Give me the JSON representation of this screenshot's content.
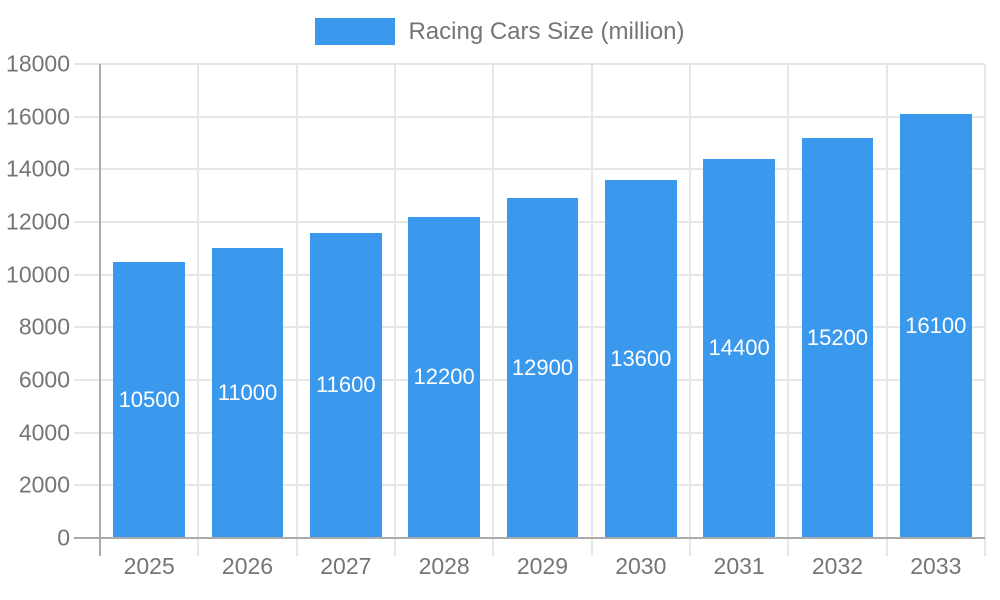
{
  "legend": {
    "label": "Racing Cars Size (million)"
  },
  "chart_data": {
    "type": "bar",
    "title": "Racing Cars Size (million)",
    "series_name": "Racing Cars Size (million)",
    "categories": [
      "2025",
      "2026",
      "2027",
      "2028",
      "2029",
      "2030",
      "2031",
      "2032",
      "2033"
    ],
    "values": [
      10500,
      11000,
      11600,
      12200,
      12900,
      13600,
      14400,
      15200,
      16100
    ],
    "data_labels": [
      "10500",
      "11000",
      "11600",
      "12200",
      "12900",
      "13600",
      "14400",
      "15200",
      "16100"
    ],
    "xlabel": "",
    "ylabel": "",
    "ylim": [
      0,
      18000
    ],
    "ytick_step": 2000,
    "yticks": [
      0,
      2000,
      4000,
      6000,
      8000,
      10000,
      12000,
      14000,
      16000,
      18000
    ],
    "grid": true,
    "legend_position": "top-center",
    "colors": {
      "bar": "#3A99EC",
      "grid": "#e6e6e6",
      "axis": "#ababab",
      "text": "#757575",
      "data_label": "#ffffff",
      "background": "#ffffff"
    }
  }
}
